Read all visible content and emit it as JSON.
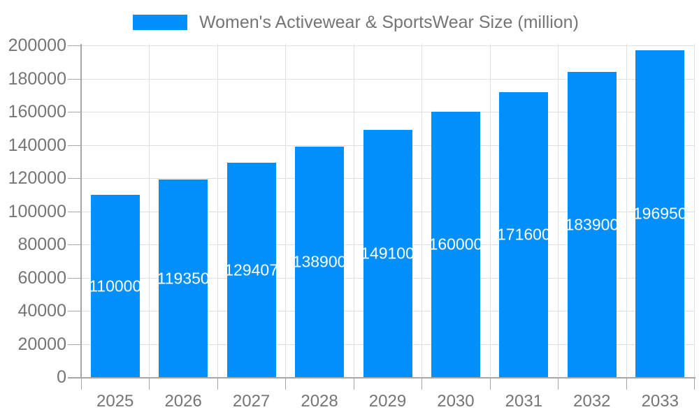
{
  "chart_data": {
    "type": "bar",
    "title": "Women's Activewear & SportsWear Size (million)",
    "legend": {
      "position": "top",
      "label": "Women's Activewear & SportsWear Size (million)"
    },
    "categories": [
      "2025",
      "2026",
      "2027",
      "2028",
      "2029",
      "2030",
      "2031",
      "2032",
      "2033"
    ],
    "values": [
      110000,
      119350,
      129407,
      138900,
      149100,
      160000,
      171600,
      183900,
      196950
    ],
    "bar_labels": [
      "110000",
      "119350",
      "129407",
      "138900",
      "149100",
      "160000",
      "171600",
      "183900",
      "196950"
    ],
    "xlabel": "",
    "ylabel": "",
    "ylim": [
      0,
      200000
    ],
    "ytick_interval": 20000,
    "yticks": [
      0,
      20000,
      40000,
      60000,
      80000,
      100000,
      120000,
      140000,
      160000,
      180000,
      200000
    ],
    "ytick_labels": [
      "0",
      "20000",
      "40000",
      "60000",
      "80000",
      "100000",
      "120000",
      "140000",
      "160000",
      "180000",
      "200000"
    ],
    "grid": true,
    "colors": {
      "bar": "#008FFB",
      "bar_label_text": "#ffffff",
      "axis_text": "#757575",
      "grid_line": "#e0e0e0",
      "axis_line": "#a6a6a6",
      "background": "#ffffff"
    }
  }
}
